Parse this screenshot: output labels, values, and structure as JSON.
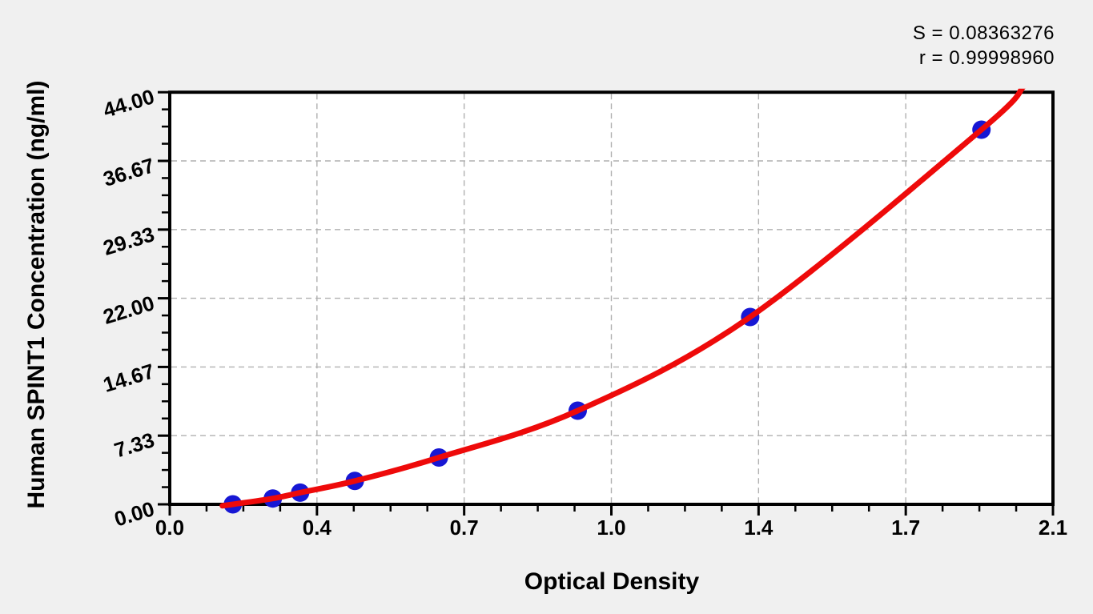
{
  "figure": {
    "background": "#f0f0f0",
    "plot_background": "#ffffff",
    "axis_color": "#000000"
  },
  "stats": {
    "s": "S = 0.08363276",
    "r": "r = 0.99998960"
  },
  "chart_data": {
    "type": "scatter",
    "title": "",
    "xlabel": "Optical Density",
    "ylabel": "Human SPINT1 Concentration (ng/ml)",
    "xlim": [
      0,
      2.1
    ],
    "ylim": [
      0,
      44
    ],
    "x_major_ticks": [
      0,
      0.35,
      0.7,
      1.05,
      1.4,
      1.75,
      2.1
    ],
    "x_tick_labels": [
      "0.0",
      "0.4",
      "0.7",
      "1.0",
      "1.4",
      "1.7",
      "2.1"
    ],
    "y_major_ticks": [
      0,
      7.3333,
      14.6667,
      22,
      29.3333,
      36.6667,
      44
    ],
    "y_tick_labels": [
      "0.00",
      "7.33",
      "14.67",
      "22.00",
      "29.33",
      "36.67",
      "44.00"
    ],
    "minor_divisions_per_major": 4,
    "grid": {
      "show": true,
      "on": "major",
      "style": "dashed",
      "color": "#b0b0b0"
    },
    "legend": "none",
    "fit_statistics": {
      "S": "0.08363276",
      "r": "0.99998960"
    },
    "series": [
      {
        "name": "standard-points",
        "type": "scatter",
        "marker": "circle",
        "color": "#1717d4",
        "points": [
          {
            "od": 0.15,
            "conc": 0
          },
          {
            "od": 0.245,
            "conc": 0.625
          },
          {
            "od": 0.31,
            "conc": 1.25
          },
          {
            "od": 0.44,
            "conc": 2.5
          },
          {
            "od": 0.64,
            "conc": 5
          },
          {
            "od": 0.97,
            "conc": 10
          },
          {
            "od": 1.38,
            "conc": 20
          },
          {
            "od": 1.93,
            "conc": 40
          }
        ]
      },
      {
        "name": "fitted-curve",
        "type": "line",
        "color": "#ee0a0a",
        "anchors": [
          [
            0.125,
            -0.15
          ],
          [
            0.15,
            0
          ],
          [
            0.245,
            0.625
          ],
          [
            0.31,
            1.25
          ],
          [
            0.44,
            2.5
          ],
          [
            0.64,
            5
          ],
          [
            0.97,
            10
          ],
          [
            1.38,
            20
          ],
          [
            1.93,
            40
          ],
          [
            2.03,
            44.6
          ]
        ]
      }
    ]
  }
}
